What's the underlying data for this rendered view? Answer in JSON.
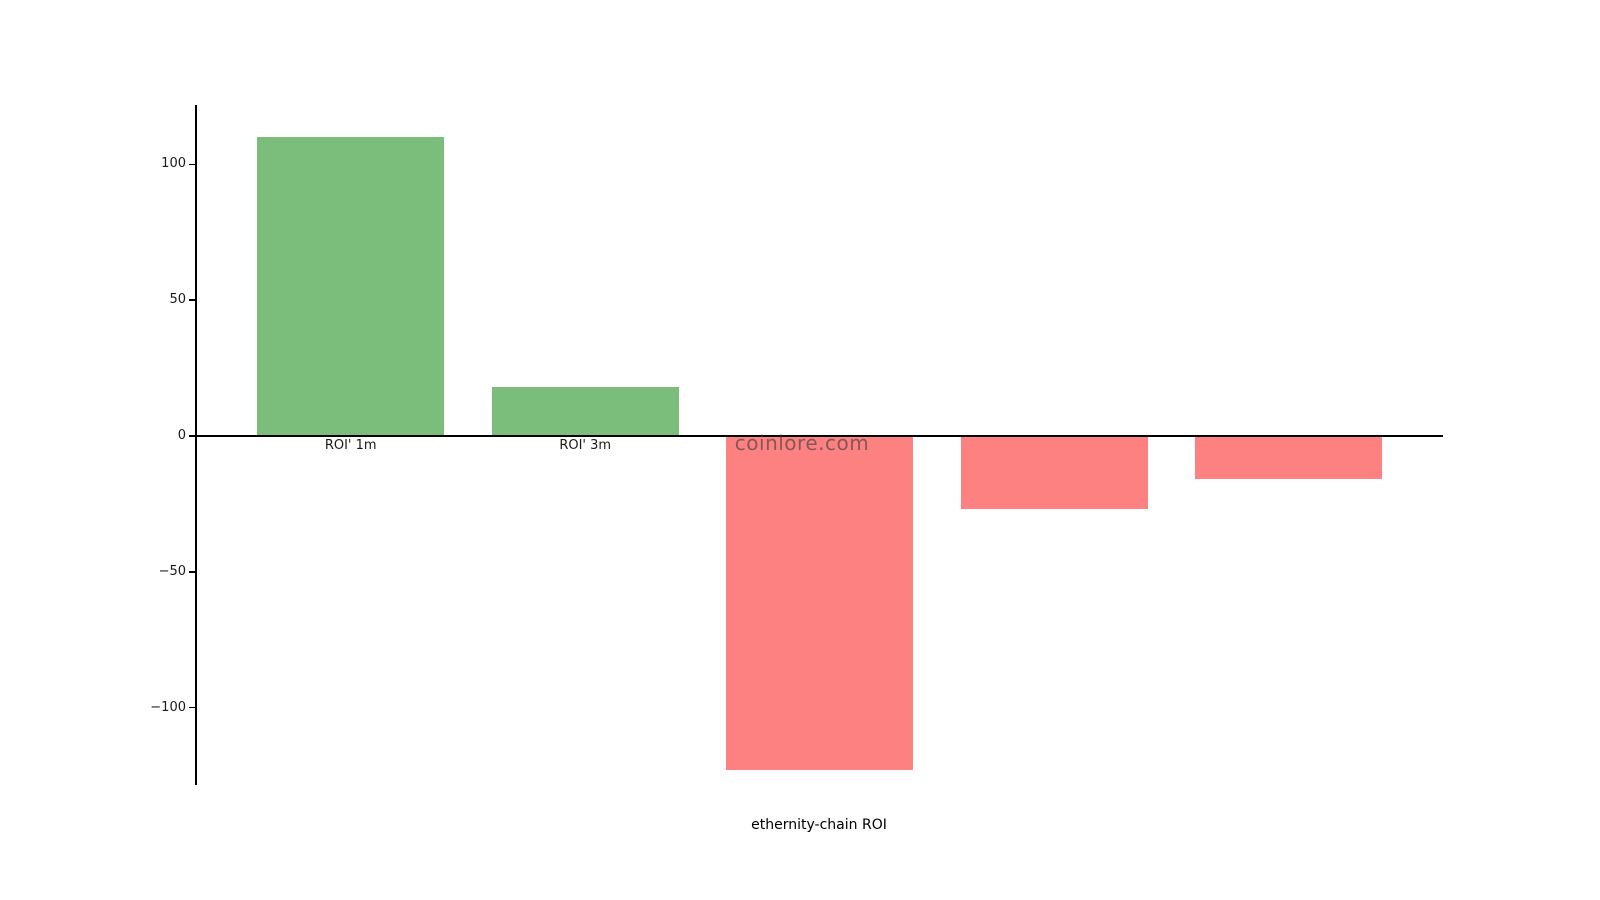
{
  "page": {
    "background_color": "#ffffff"
  },
  "chart_data": {
    "type": "bar",
    "title": "ethernity-chain ROI",
    "watermark": "coinlore.com",
    "categories": [
      "ROI' 1m",
      "ROI' 3m",
      "",
      "",
      ""
    ],
    "values": [
      110,
      18,
      -123,
      -27,
      -16
    ],
    "bar_colors": [
      "#7bbd7b",
      "#7bbd7b",
      "#fd8181",
      "#fd8181",
      "#fd8181"
    ],
    "positive_color": "#7bbd7b",
    "negative_color": "#fd8181",
    "axis_color": "#000000",
    "tick_label_color": "#1a1a1a",
    "yticks": [
      100,
      50,
      0,
      -50,
      -100
    ],
    "ytick_labels": [
      "100",
      "50",
      "0",
      "−50",
      "−100"
    ],
    "ylim": [
      -128.5,
      121
    ],
    "grid": false,
    "legend_position": "none",
    "xlabel": "",
    "ylabel": ""
  }
}
